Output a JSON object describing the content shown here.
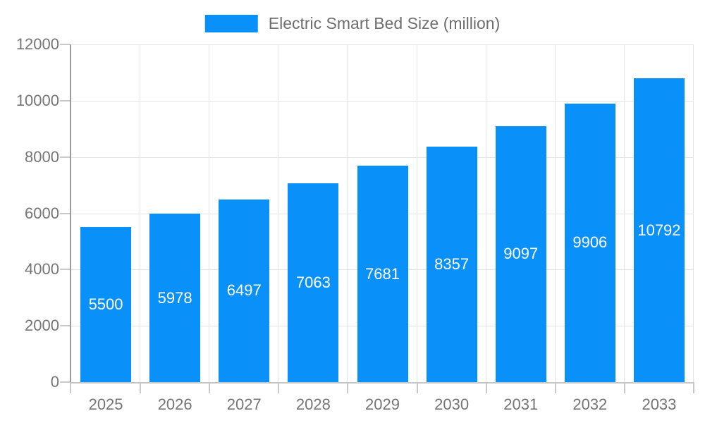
{
  "legend": {
    "label": "Electric Smart Bed Size (million)"
  },
  "chart_data": {
    "type": "bar",
    "title": "Electric Smart Bed Size (million)",
    "categories": [
      "2025",
      "2026",
      "2027",
      "2028",
      "2029",
      "2030",
      "2031",
      "2032",
      "2033"
    ],
    "values": [
      5500,
      5978,
      6497,
      7063,
      7681,
      8357,
      9097,
      9906,
      10792
    ],
    "series_name": "Electric Smart Bed Size (million)",
    "xlabel": "",
    "ylabel": "",
    "ylim": [
      0,
      12000
    ],
    "yticks": [
      0,
      2000,
      4000,
      6000,
      8000,
      10000,
      12000
    ],
    "grid": true,
    "legend_position": "top",
    "data_labels": "inside-center"
  },
  "colors": {
    "bar": "#0991f9",
    "bar_label": "#ffffff",
    "axis_text": "#757575",
    "legend_text": "#6e6e6e",
    "gridline": "#e5e5e5",
    "axis_line_y": "#9b9b9b",
    "axis_line_x": "#c6c6c6",
    "tick": "#c9c9c9",
    "background": "#ffffff"
  }
}
